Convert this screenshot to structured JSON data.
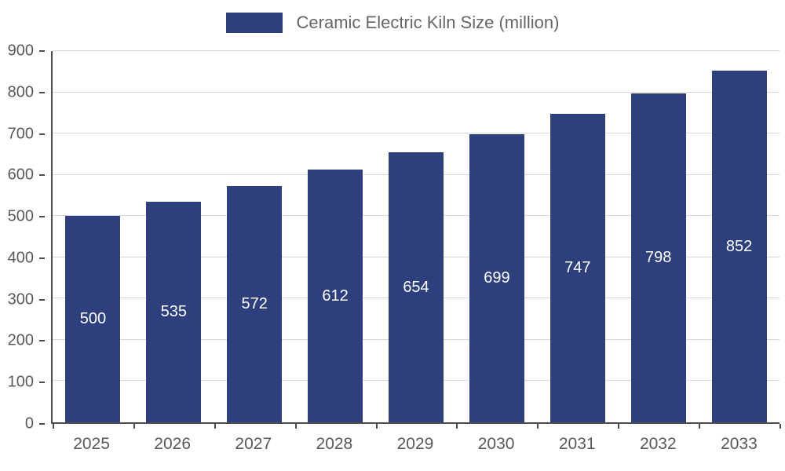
{
  "legend": {
    "label": "Ceramic Electric Kiln Size (million)"
  },
  "colors": {
    "bar": "#2e3f7d",
    "grid": "#d9d9d9",
    "axis": "#4d4d4d",
    "tick_text": "#595959",
    "legend_text": "#666666",
    "value_text": "#ffffff",
    "background": "#ffffff"
  },
  "chart_data": {
    "type": "bar",
    "title": "Ceramic Electric Kiln Size (million)",
    "categories": [
      "2025",
      "2026",
      "2027",
      "2028",
      "2029",
      "2030",
      "2031",
      "2032",
      "2033"
    ],
    "values": [
      500,
      535,
      572,
      612,
      654,
      699,
      747,
      798,
      852
    ],
    "xlabel": "",
    "ylabel": "",
    "ylim": [
      0,
      900
    ],
    "ytick_step": 100,
    "ytick_labels": [
      "0",
      "100",
      "200",
      "300",
      "400",
      "500",
      "600",
      "700",
      "800",
      "900"
    ],
    "grid": true,
    "legend_position": "top",
    "bar_label_position": "inside-center"
  }
}
